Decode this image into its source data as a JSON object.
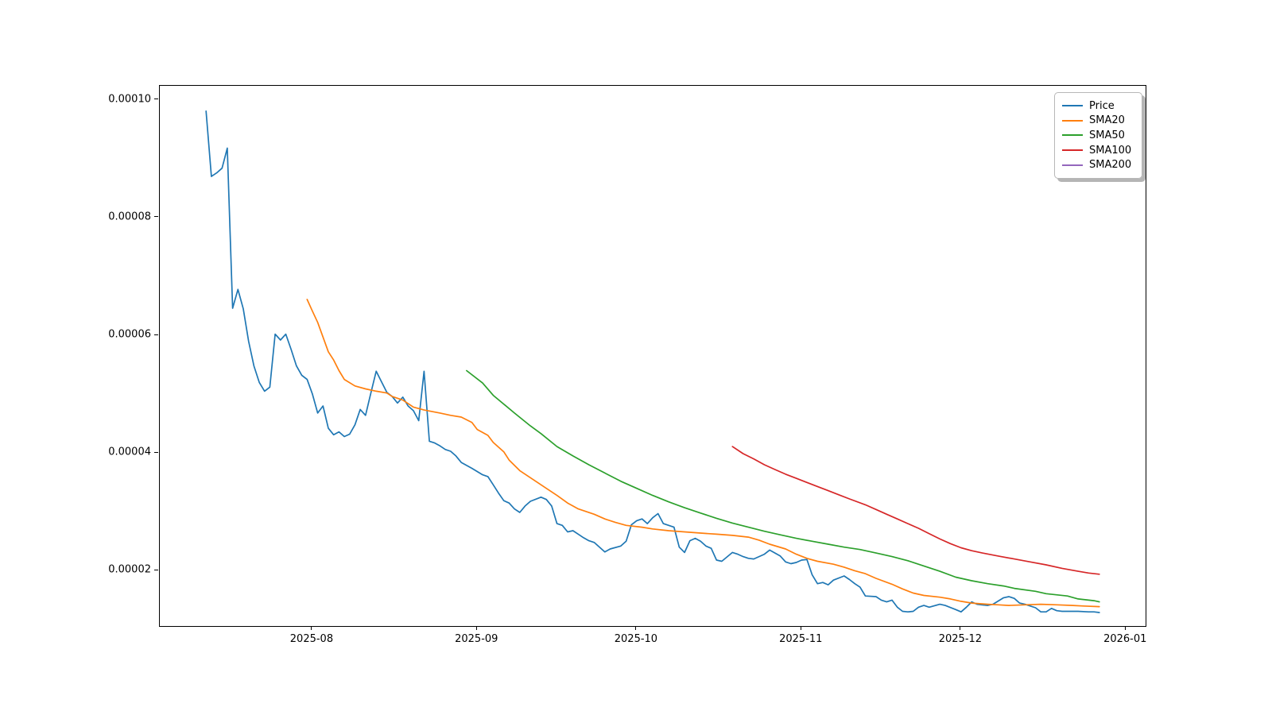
{
  "figure": {
    "background": "#ffffff",
    "border_color": "#000000"
  },
  "legend": {
    "position": "upper-right",
    "items": [
      {
        "label": "Price",
        "color": "#1f77b4"
      },
      {
        "label": "SMA20",
        "color": "#ff7f0e"
      },
      {
        "label": "SMA50",
        "color": "#2ca02c"
      },
      {
        "label": "SMA100",
        "color": "#d62728"
      },
      {
        "label": "SMA200",
        "color": "#9467bd"
      }
    ]
  },
  "chart_data": {
    "type": "line",
    "title": "",
    "xlabel": "",
    "ylabel": "",
    "grid": false,
    "x_unit": "days, day 0 = 2025-07-12 (daily data)",
    "y_unit_scale": 1e-05,
    "xlim_days": [
      -8.7,
      176.7
    ],
    "ylim": [
      1.06e-05,
      0.0001024
    ],
    "x_ticks": [
      {
        "d": 20,
        "label": "2025-08"
      },
      {
        "d": 51,
        "label": "2025-09"
      },
      {
        "d": 81,
        "label": "2025-10"
      },
      {
        "d": 112,
        "label": "2025-11"
      },
      {
        "d": 142,
        "label": "2025-12"
      },
      {
        "d": 173,
        "label": "2026-01"
      }
    ],
    "y_ticks": [
      {
        "v": 2,
        "label": "0.00002"
      },
      {
        "v": 4,
        "label": "0.00004"
      },
      {
        "v": 6,
        "label": "0.00006"
      },
      {
        "v": 8,
        "label": "0.00008"
      },
      {
        "v": 10,
        "label": "0.00010"
      }
    ],
    "series": [
      {
        "name": "Price",
        "color": "#1f77b4",
        "line_width": 1.7,
        "points": [
          [
            0,
            9.81
          ],
          [
            1,
            8.7
          ],
          [
            2,
            8.76
          ],
          [
            3,
            8.84
          ],
          [
            4,
            9.18
          ],
          [
            5,
            6.46
          ],
          [
            6,
            6.78
          ],
          [
            7,
            6.45
          ],
          [
            8,
            5.9
          ],
          [
            9,
            5.48
          ],
          [
            10,
            5.2
          ],
          [
            11,
            5.05
          ],
          [
            12,
            5.12
          ],
          [
            13,
            6.02
          ],
          [
            14,
            5.92
          ],
          [
            15,
            6.02
          ],
          [
            16,
            5.76
          ],
          [
            17,
            5.48
          ],
          [
            18,
            5.32
          ],
          [
            19,
            5.25
          ],
          [
            20,
            5.0
          ],
          [
            21,
            4.68
          ],
          [
            22,
            4.8
          ],
          [
            23,
            4.42
          ],
          [
            24,
            4.31
          ],
          [
            25,
            4.36
          ],
          [
            26,
            4.28
          ],
          [
            27,
            4.32
          ],
          [
            28,
            4.48
          ],
          [
            29,
            4.74
          ],
          [
            30,
            4.64
          ],
          [
            31,
            5.02
          ],
          [
            32,
            5.39
          ],
          [
            33,
            5.21
          ],
          [
            34,
            5.03
          ],
          [
            35,
            4.96
          ],
          [
            36,
            4.85
          ],
          [
            37,
            4.95
          ],
          [
            38,
            4.8
          ],
          [
            39,
            4.72
          ],
          [
            40,
            4.55
          ],
          [
            41,
            5.39
          ],
          [
            42,
            4.2
          ],
          [
            43,
            4.17
          ],
          [
            44,
            4.12
          ],
          [
            45,
            4.06
          ],
          [
            46,
            4.03
          ],
          [
            47,
            3.95
          ],
          [
            48,
            3.84
          ],
          [
            50,
            3.74
          ],
          [
            52,
            3.63
          ],
          [
            53,
            3.6
          ],
          [
            54,
            3.46
          ],
          [
            55,
            3.32
          ],
          [
            56,
            3.19
          ],
          [
            57,
            3.15
          ],
          [
            58,
            3.05
          ],
          [
            59,
            2.99
          ],
          [
            60,
            3.1
          ],
          [
            61,
            3.18
          ],
          [
            63,
            3.25
          ],
          [
            64,
            3.21
          ],
          [
            65,
            3.1
          ],
          [
            66,
            2.8
          ],
          [
            67,
            2.77
          ],
          [
            68,
            2.66
          ],
          [
            69,
            2.68
          ],
          [
            70,
            2.62
          ],
          [
            71,
            2.56
          ],
          [
            72,
            2.51
          ],
          [
            73,
            2.48
          ],
          [
            75,
            2.32
          ],
          [
            76,
            2.37
          ],
          [
            78,
            2.42
          ],
          [
            79,
            2.5
          ],
          [
            80,
            2.78
          ],
          [
            81,
            2.85
          ],
          [
            82,
            2.88
          ],
          [
            83,
            2.8
          ],
          [
            84,
            2.9
          ],
          [
            85,
            2.97
          ],
          [
            86,
            2.8
          ],
          [
            87,
            2.77
          ],
          [
            88,
            2.74
          ],
          [
            89,
            2.4
          ],
          [
            90,
            2.31
          ],
          [
            91,
            2.51
          ],
          [
            92,
            2.55
          ],
          [
            93,
            2.5
          ],
          [
            94,
            2.42
          ],
          [
            95,
            2.38
          ],
          [
            96,
            2.18
          ],
          [
            97,
            2.16
          ],
          [
            99,
            2.31
          ],
          [
            100,
            2.28
          ],
          [
            101,
            2.24
          ],
          [
            102,
            2.21
          ],
          [
            103,
            2.2
          ],
          [
            104,
            2.24
          ],
          [
            105,
            2.28
          ],
          [
            106,
            2.35
          ],
          [
            108,
            2.25
          ],
          [
            109,
            2.15
          ],
          [
            110,
            2.12
          ],
          [
            111,
            2.14
          ],
          [
            112,
            2.18
          ],
          [
            113,
            2.19
          ],
          [
            114,
            1.93
          ],
          [
            115,
            1.78
          ],
          [
            116,
            1.8
          ],
          [
            117,
            1.76
          ],
          [
            118,
            1.84
          ],
          [
            120,
            1.91
          ],
          [
            121,
            1.85
          ],
          [
            122,
            1.78
          ],
          [
            123,
            1.72
          ],
          [
            124,
            1.57
          ],
          [
            126,
            1.56
          ],
          [
            127,
            1.5
          ],
          [
            128,
            1.47
          ],
          [
            129,
            1.5
          ],
          [
            130,
            1.38
          ],
          [
            131,
            1.31
          ],
          [
            132,
            1.3
          ],
          [
            133,
            1.31
          ],
          [
            134,
            1.38
          ],
          [
            135,
            1.41
          ],
          [
            136,
            1.38
          ],
          [
            138,
            1.43
          ],
          [
            139,
            1.41
          ],
          [
            141,
            1.34
          ],
          [
            142,
            1.3
          ],
          [
            143,
            1.38
          ],
          [
            144,
            1.47
          ],
          [
            145,
            1.43
          ],
          [
            147,
            1.41
          ],
          [
            148,
            1.43
          ],
          [
            150,
            1.54
          ],
          [
            151,
            1.56
          ],
          [
            152,
            1.53
          ],
          [
            153,
            1.45
          ],
          [
            154,
            1.43
          ],
          [
            156,
            1.37
          ],
          [
            157,
            1.3
          ],
          [
            158,
            1.3
          ],
          [
            159,
            1.36
          ],
          [
            160,
            1.32
          ],
          [
            161,
            1.31
          ],
          [
            163,
            1.31
          ],
          [
            164,
            1.31
          ],
          [
            166,
            1.3
          ],
          [
            167,
            1.3
          ],
          [
            168,
            1.29
          ]
        ]
      },
      {
        "name": "SMA20",
        "color": "#ff7f0e",
        "line_width": 1.7,
        "points": [
          [
            19,
            6.61
          ],
          [
            20,
            6.41
          ],
          [
            21,
            6.22
          ],
          [
            22,
            5.97
          ],
          [
            23,
            5.72
          ],
          [
            24,
            5.58
          ],
          [
            25,
            5.4
          ],
          [
            26,
            5.25
          ],
          [
            28,
            5.14
          ],
          [
            30,
            5.09
          ],
          [
            32,
            5.05
          ],
          [
            34,
            5.02
          ],
          [
            35,
            4.96
          ],
          [
            37,
            4.9
          ],
          [
            39,
            4.78
          ],
          [
            41,
            4.73
          ],
          [
            44,
            4.68
          ],
          [
            46,
            4.64
          ],
          [
            48,
            4.61
          ],
          [
            50,
            4.52
          ],
          [
            51,
            4.4
          ],
          [
            53,
            4.3
          ],
          [
            54,
            4.18
          ],
          [
            56,
            4.02
          ],
          [
            57,
            3.88
          ],
          [
            59,
            3.7
          ],
          [
            62,
            3.52
          ],
          [
            64,
            3.4
          ],
          [
            66,
            3.28
          ],
          [
            68,
            3.15
          ],
          [
            70,
            3.05
          ],
          [
            73,
            2.96
          ],
          [
            75,
            2.88
          ],
          [
            77,
            2.82
          ],
          [
            79,
            2.77
          ],
          [
            82,
            2.74
          ],
          [
            84,
            2.71
          ],
          [
            87,
            2.68
          ],
          [
            90,
            2.66
          ],
          [
            93,
            2.64
          ],
          [
            96,
            2.62
          ],
          [
            99,
            2.6
          ],
          [
            102,
            2.57
          ],
          [
            104,
            2.52
          ],
          [
            106,
            2.45
          ],
          [
            109,
            2.37
          ],
          [
            111,
            2.28
          ],
          [
            113,
            2.21
          ],
          [
            115,
            2.16
          ],
          [
            118,
            2.11
          ],
          [
            120,
            2.06
          ],
          [
            122,
            2.0
          ],
          [
            124,
            1.95
          ],
          [
            126,
            1.87
          ],
          [
            129,
            1.77
          ],
          [
            131,
            1.69
          ],
          [
            133,
            1.62
          ],
          [
            135,
            1.58
          ],
          [
            138,
            1.55
          ],
          [
            140,
            1.52
          ],
          [
            142,
            1.48
          ],
          [
            144,
            1.45
          ],
          [
            147,
            1.43
          ],
          [
            149,
            1.42
          ],
          [
            151,
            1.41
          ],
          [
            154,
            1.42
          ],
          [
            157,
            1.43
          ],
          [
            160,
            1.42
          ],
          [
            163,
            1.41
          ],
          [
            165,
            1.4
          ],
          [
            168,
            1.39
          ]
        ]
      },
      {
        "name": "SMA50",
        "color": "#2ca02c",
        "line_width": 1.7,
        "points": [
          [
            49,
            5.4
          ],
          [
            52,
            5.19
          ],
          [
            54,
            4.98
          ],
          [
            58,
            4.68
          ],
          [
            61,
            4.46
          ],
          [
            63,
            4.33
          ],
          [
            66,
            4.11
          ],
          [
            69,
            3.95
          ],
          [
            72,
            3.8
          ],
          [
            75,
            3.66
          ],
          [
            78,
            3.52
          ],
          [
            81,
            3.4
          ],
          [
            84,
            3.28
          ],
          [
            87,
            3.17
          ],
          [
            90,
            3.07
          ],
          [
            93,
            2.98
          ],
          [
            96,
            2.89
          ],
          [
            99,
            2.81
          ],
          [
            102,
            2.74
          ],
          [
            105,
            2.67
          ],
          [
            108,
            2.61
          ],
          [
            111,
            2.55
          ],
          [
            114,
            2.5
          ],
          [
            117,
            2.45
          ],
          [
            120,
            2.4
          ],
          [
            123,
            2.36
          ],
          [
            126,
            2.3
          ],
          [
            129,
            2.24
          ],
          [
            132,
            2.17
          ],
          [
            135,
            2.08
          ],
          [
            138,
            1.99
          ],
          [
            141,
            1.89
          ],
          [
            144,
            1.83
          ],
          [
            147,
            1.78
          ],
          [
            150,
            1.74
          ],
          [
            152,
            1.7
          ],
          [
            156,
            1.65
          ],
          [
            158,
            1.61
          ],
          [
            162,
            1.57
          ],
          [
            164,
            1.52
          ],
          [
            167,
            1.49
          ],
          [
            168,
            1.47
          ]
        ]
      },
      {
        "name": "SMA100",
        "color": "#d62728",
        "line_width": 1.7,
        "points": [
          [
            99,
            4.11
          ],
          [
            101,
            3.99
          ],
          [
            103,
            3.9
          ],
          [
            105,
            3.8
          ],
          [
            107,
            3.72
          ],
          [
            109,
            3.64
          ],
          [
            111,
            3.57
          ],
          [
            113,
            3.5
          ],
          [
            115,
            3.43
          ],
          [
            117,
            3.36
          ],
          [
            119,
            3.29
          ],
          [
            121,
            3.22
          ],
          [
            124,
            3.12
          ],
          [
            126,
            3.04
          ],
          [
            128,
            2.96
          ],
          [
            130,
            2.88
          ],
          [
            132,
            2.8
          ],
          [
            134,
            2.72
          ],
          [
            136,
            2.63
          ],
          [
            138,
            2.54
          ],
          [
            140,
            2.46
          ],
          [
            142,
            2.39
          ],
          [
            144,
            2.34
          ],
          [
            146,
            2.3
          ],
          [
            149,
            2.25
          ],
          [
            152,
            2.2
          ],
          [
            155,
            2.15
          ],
          [
            158,
            2.1
          ],
          [
            161,
            2.04
          ],
          [
            164,
            1.99
          ],
          [
            166,
            1.96
          ],
          [
            168,
            1.94
          ]
        ]
      },
      {
        "name": "SMA200",
        "color": "#9467bd",
        "line_width": 1.7,
        "points": []
      }
    ]
  }
}
